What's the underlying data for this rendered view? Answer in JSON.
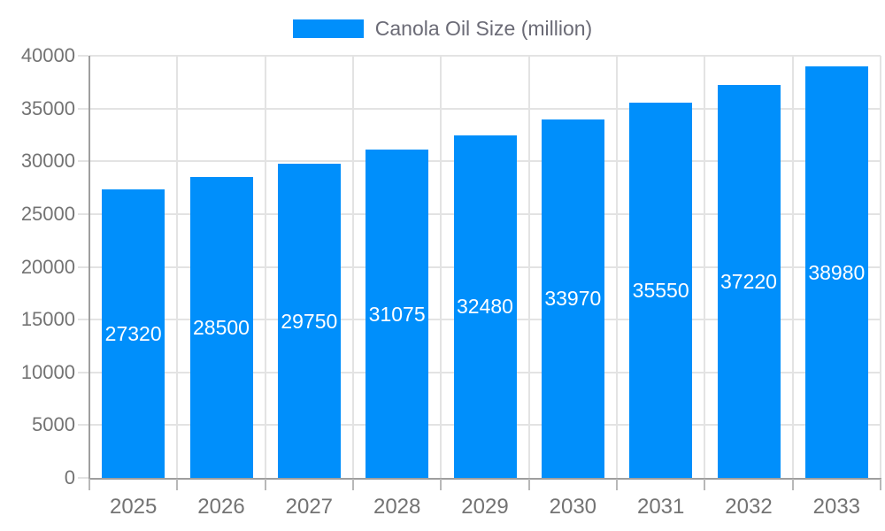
{
  "legend": {
    "label": "Canola Oil Size (million)"
  },
  "colors": {
    "bar": "#008FFB",
    "bar_label_text": "#ffffff",
    "axis_label_text": "#737373",
    "legend_text": "#6b6b76",
    "gridline": "#e3e3e3",
    "axis_line": "#9e9e9e",
    "x_tick": "#b8b8b8",
    "background": "#ffffff"
  },
  "chart_data": {
    "type": "bar",
    "title": "",
    "series_name": "Canola Oil Size (million)",
    "categories": [
      "2025",
      "2026",
      "2027",
      "2028",
      "2029",
      "2030",
      "2031",
      "2032",
      "2033"
    ],
    "values": [
      27320,
      28500,
      29750,
      31075,
      32480,
      33970,
      35550,
      37220,
      38980
    ],
    "xlabel": "",
    "ylabel": "",
    "ylim": [
      0,
      40000
    ],
    "yticks": [
      0,
      5000,
      10000,
      15000,
      20000,
      25000,
      30000,
      35000,
      40000
    ],
    "grid": true,
    "legend_position": "top",
    "bar_labels": "inside-middle"
  }
}
